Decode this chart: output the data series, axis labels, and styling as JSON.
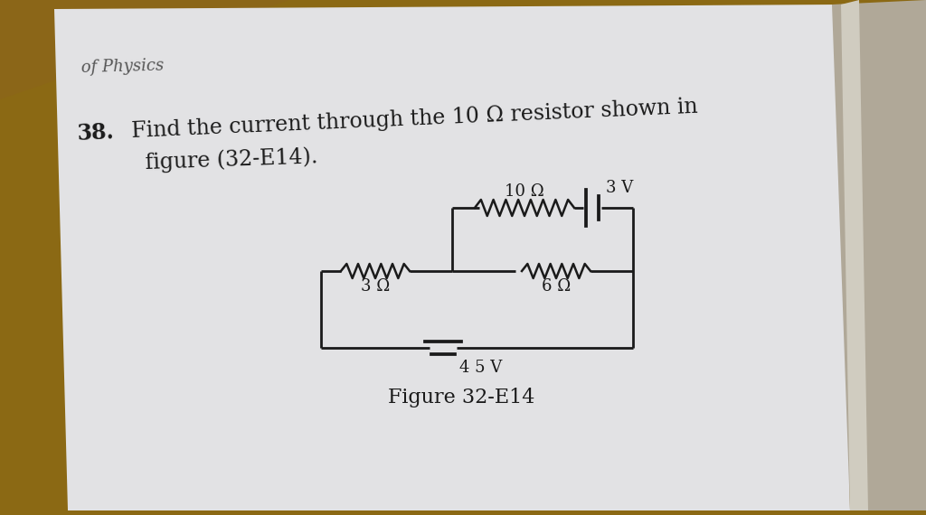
{
  "bg_wood_color": "#8B6914",
  "page_color": "#dcdcdc",
  "page_color2": "#e8e8e8",
  "text_color": "#1a1a1a",
  "line_color": "#1a1a1a",
  "header_text": "of Physics",
  "q_num": "38.",
  "q_line1": "Find the current through the 10 Ω resistor shown in",
  "q_line2": "figure (32-E14).",
  "figure_caption": "Figure 32-E14",
  "circuit": {
    "r10": "10 Ω",
    "r3": "3 Ω",
    "r6": "6 Ω",
    "v3": "3 V",
    "v45": "4 5 V"
  },
  "transform_skew_deg": 4
}
